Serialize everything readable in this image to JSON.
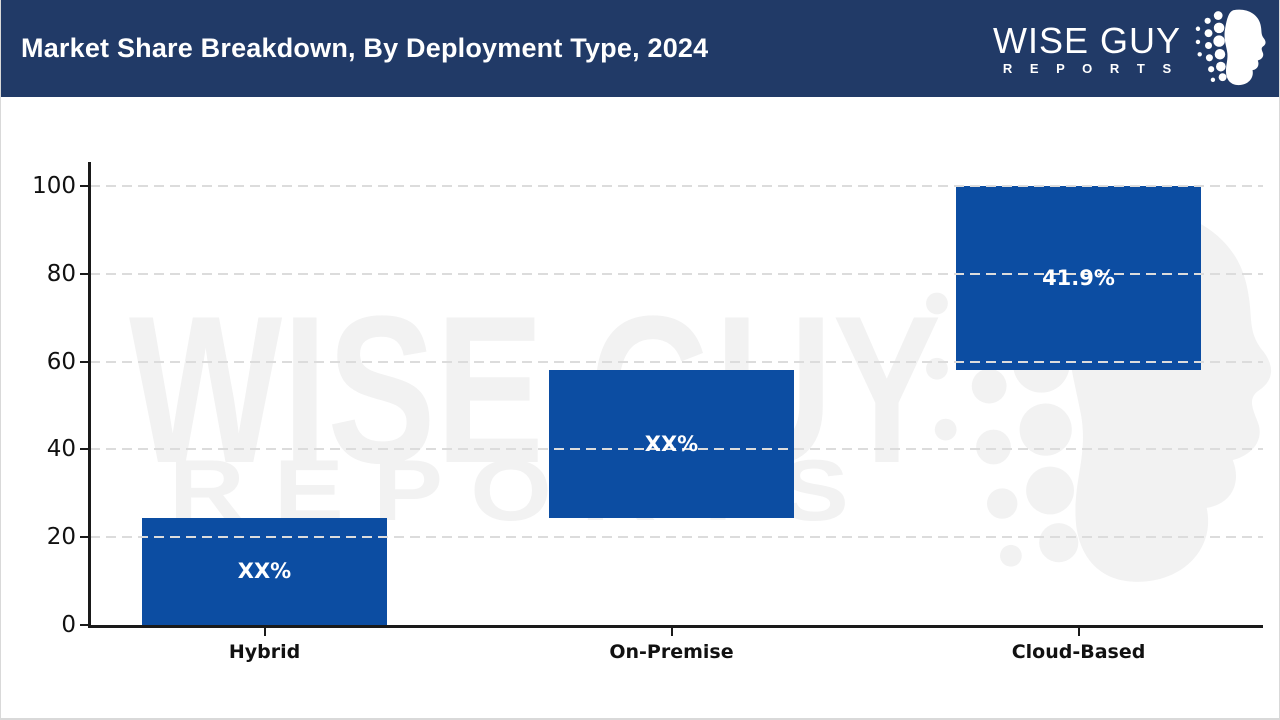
{
  "header": {
    "title": "Market Share Breakdown, By Deployment Type, 2024",
    "logo": {
      "line1": "WISE GUY",
      "line2": "R E P O R T S"
    }
  },
  "watermark": {
    "line1": "WISE GUY",
    "line2": "R E P O R T S"
  },
  "chart_data": {
    "type": "bar",
    "subtype": "waterfall (floating stacked segments, one per category)",
    "title": "Market Share Breakdown, By Deployment Type, 2024",
    "categories": [
      "Hybrid",
      "On-Premise",
      "Cloud-Based"
    ],
    "series": [
      {
        "name": "Market share (%)",
        "segments": [
          {
            "category": "Hybrid",
            "start": 0,
            "end": 24.4,
            "value": 24.4,
            "label": "XX%"
          },
          {
            "category": "On-Premise",
            "start": 24.4,
            "end": 58.1,
            "value": 33.7,
            "label": "XX%"
          },
          {
            "category": "Cloud-Based",
            "start": 58.1,
            "end": 100,
            "value": 41.9,
            "label": "41.9%"
          }
        ]
      }
    ],
    "xlabel": "",
    "ylabel": "",
    "yticks": [
      0,
      20,
      40,
      60,
      80,
      100
    ],
    "ylim": [
      0,
      105.5
    ],
    "grid": {
      "horizontal": true,
      "style": "dashed",
      "drawn_on_top_of_bars": true
    },
    "legend": "none",
    "colors": {
      "bar": "#0c4da2",
      "grid": "#dcdcdc",
      "axis": "#1a1a1a",
      "bar_label": "#ffffff",
      "tick_label": "#111111"
    }
  },
  "colors": {
    "header_bg": "#213a67",
    "header_text": "#ffffff",
    "watermark": "#f2f2f2",
    "frame_border": "#d9d9d9"
  }
}
